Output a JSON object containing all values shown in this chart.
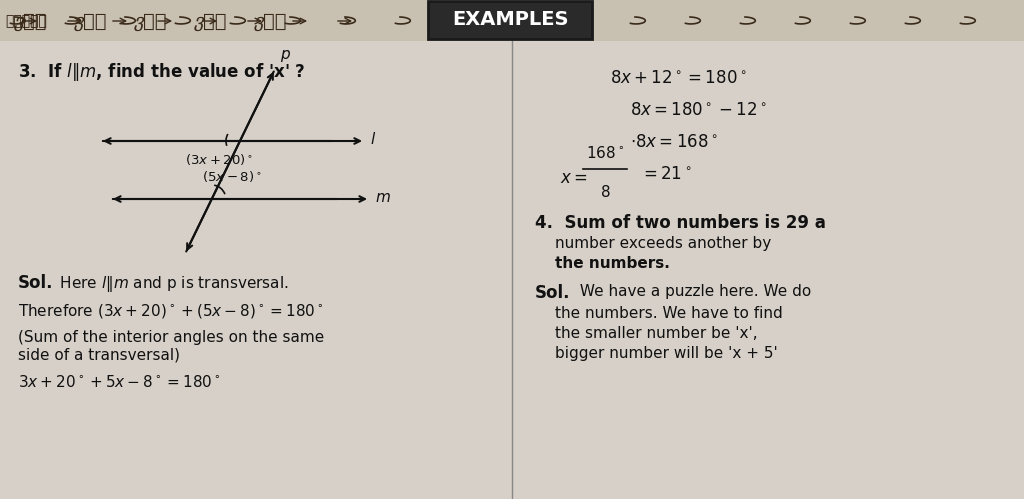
{
  "bg_color": "#d6d0c8",
  "title_box_color": "#2a2a2a",
  "title_text": "EXAMPLES",
  "title_text_color": "#ffffff",
  "left_panel": {
    "q3_header": "3.  If $l \\| m$, find the value of 'x' ?",
    "sol_label": "Sol.",
    "sol_line1": " Here $l \\| m$ and p is transversal.",
    "sol_line2": "Therefore $(3x + 20)^\\circ + (5x - 8)^\\circ = 180^\\circ$",
    "sol_line3": "(Sum of the interior angles on the same",
    "sol_line4": "side of a transversal)",
    "sol_line5": "$3x + 20^\\circ + 5x - 8^\\circ = 180^\\circ$"
  },
  "right_panel": {
    "line1": "$8x + 12^\\circ = 180^\\circ$",
    "line2": "$8x = 180^\\circ - 12^\\circ$",
    "line3": "$\\cdot 8x = 168^\\circ$",
    "line4_a": "$x = \\dfrac{168^\\circ}{8} = 21^\\circ$",
    "q4_header": "4.  Sum of two numbers is 29 a",
    "q4_line2": "number exceeds another by",
    "q4_line3": "the numbers.",
    "sol4_label": "Sol.",
    "sol4_line1": " We have a puzzle here. We do",
    "sol4_line2": "the numbers. We have to find",
    "sol4_line3": "the smaller number be 'x',",
    "sol4_line4": "bigger number will be 'x + 5'"
  }
}
